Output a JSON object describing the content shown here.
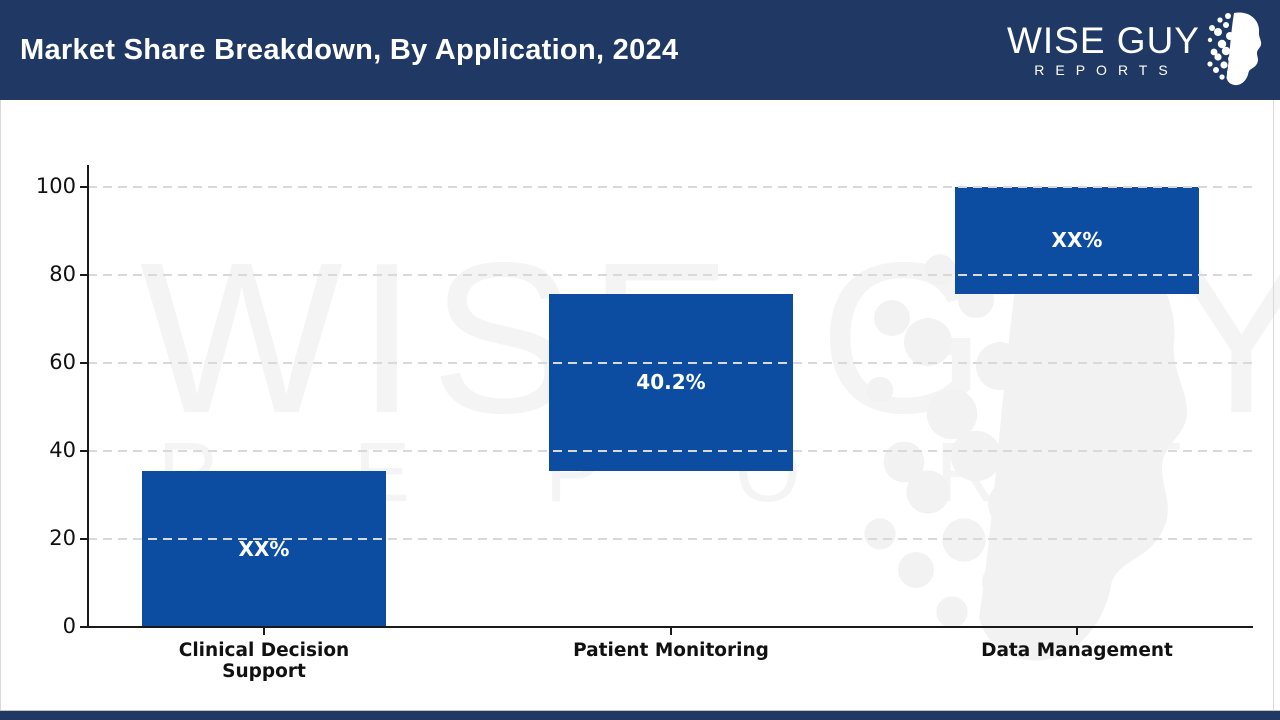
{
  "header": {
    "title": "Market Share Breakdown, By Application, 2024",
    "logo": {
      "wordmark": "WISE GUY",
      "subtext": "REPORTS"
    }
  },
  "watermark": {
    "wordmark": "WISE GUY",
    "subtext": "R E P O R T S"
  },
  "chart_data": {
    "type": "bar",
    "subtype": "waterfall-floating-segments",
    "title": "Market Share Breakdown, By Application, 2024",
    "categories": [
      "Clinical Decision Support",
      "Patient Monitoring",
      "Data Management"
    ],
    "segments": [
      {
        "category": "Clinical Decision Support",
        "start": 0,
        "end": 35.5,
        "label": "XX%"
      },
      {
        "category": "Patient Monitoring",
        "start": 35.5,
        "end": 75.7,
        "label": "40.2%"
      },
      {
        "category": "Data Management",
        "start": 75.7,
        "end": 100,
        "label": "XX%"
      }
    ],
    "xlabel": "",
    "ylabel": "",
    "ylim": [
      0,
      100
    ],
    "yticks": [
      0,
      20,
      40,
      60,
      80,
      100
    ],
    "grid": {
      "horizontal": true,
      "style": "dashed",
      "drawn_over_bars": true
    },
    "legend": "none",
    "bar_color": "#0c4da2",
    "value_label_color": "#ffffff"
  },
  "colors": {
    "header_bg": "#1f3864",
    "footer_bg": "#1f3864",
    "axis": "#1a1a1a",
    "grid": "#d9d9d9",
    "watermark": "#f4f4f4"
  }
}
